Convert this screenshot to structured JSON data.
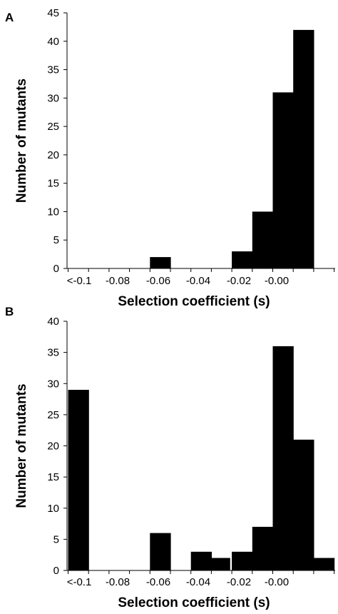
{
  "chart_data": [
    {
      "type": "bar",
      "panel": "A",
      "xlabel": "Selection coefficient (s)",
      "ylabel": "Number of mutants",
      "ylim": [
        0,
        45
      ],
      "yticks": [
        0,
        5,
        10,
        15,
        20,
        25,
        30,
        35,
        40,
        45
      ],
      "xtick_labels": [
        "<-0.1",
        "-0.08",
        "-0.06",
        "-0.04",
        "-0.02",
        "-0.00"
      ],
      "grid": false,
      "bars": [
        {
          "bin": "<-0.1",
          "value": 0
        },
        {
          "bin": "-0.09",
          "value": 0
        },
        {
          "bin": "-0.08",
          "value": 0
        },
        {
          "bin": "-0.07",
          "value": 0
        },
        {
          "bin": "-0.065",
          "value": 2
        },
        {
          "bin": "-0.055",
          "value": 0
        },
        {
          "bin": "-0.045",
          "value": 0
        },
        {
          "bin": "-0.035",
          "value": 0
        },
        {
          "bin": "-0.025",
          "value": 3
        },
        {
          "bin": "-0.015",
          "value": 10
        },
        {
          "bin": "-0.005",
          "value": 31
        },
        {
          "bin": "0.005",
          "value": 42
        }
      ]
    },
    {
      "type": "bar",
      "panel": "B",
      "xlabel": "Selection coefficient (s)",
      "ylabel": "Number of mutants",
      "ylim": [
        0,
        40
      ],
      "yticks": [
        0,
        5,
        10,
        15,
        20,
        25,
        30,
        35,
        40
      ],
      "xtick_labels": [
        "<-0.1",
        "-0.08",
        "-0.06",
        "-0.04",
        "-0.02",
        "-0.00"
      ],
      "grid": false,
      "bars": [
        {
          "bin": "<-0.1",
          "value": 29
        },
        {
          "bin": "-0.09",
          "value": 0
        },
        {
          "bin": "-0.08",
          "value": 0
        },
        {
          "bin": "-0.07",
          "value": 0
        },
        {
          "bin": "-0.065",
          "value": 6
        },
        {
          "bin": "-0.055",
          "value": 0
        },
        {
          "bin": "-0.045",
          "value": 3
        },
        {
          "bin": "-0.04",
          "value": 2
        },
        {
          "bin": "-0.025",
          "value": 3
        },
        {
          "bin": "-0.015",
          "value": 7
        },
        {
          "bin": "-0.005",
          "value": 36
        },
        {
          "bin": "0.005",
          "value": 21
        },
        {
          "bin": "0.015",
          "value": 2
        }
      ]
    }
  ]
}
